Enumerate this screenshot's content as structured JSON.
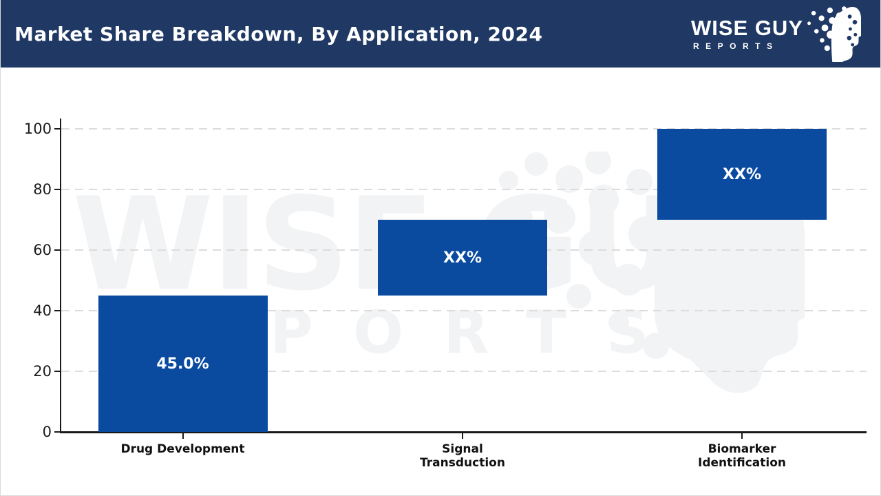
{
  "header": {
    "title": "Market Share Breakdown, By Application, 2024",
    "bg_color": "#1f3864",
    "logo": {
      "line1": "WISE GUY",
      "line2": "REPORTS"
    }
  },
  "watermark": {
    "line1": "WISE GUY",
    "line2": "REPORTS"
  },
  "chart_data": {
    "type": "bar",
    "subtype": "floating-waterfall",
    "title": "Market Share Breakdown, By Application, 2024",
    "categories": [
      "Drug Development",
      "Signal Transduction",
      "Biomarker Identification"
    ],
    "category_lines": [
      [
        "Drug Development"
      ],
      [
        "Signal",
        "Transduction"
      ],
      [
        "Biomarker",
        "Identification"
      ]
    ],
    "bars": [
      {
        "category": "Drug Development",
        "start": 0,
        "end": 45,
        "span": 45.0,
        "label": "45.0%"
      },
      {
        "category": "Signal Transduction",
        "start": 45,
        "end": 70,
        "span": 25,
        "label": "XX%"
      },
      {
        "category": "Biomarker Identification",
        "start": 70,
        "end": 100,
        "span": 30,
        "label": "XX%"
      }
    ],
    "ylim": [
      0,
      100
    ],
    "yticks": [
      0,
      20,
      40,
      60,
      80,
      100
    ],
    "xlabel": "",
    "ylabel": "",
    "bar_color": "#0a4ba0",
    "label_color": "#ffffff",
    "grid": {
      "horizontal": true,
      "style": "dashed",
      "color": "#dcdcdc"
    },
    "legend": null
  }
}
